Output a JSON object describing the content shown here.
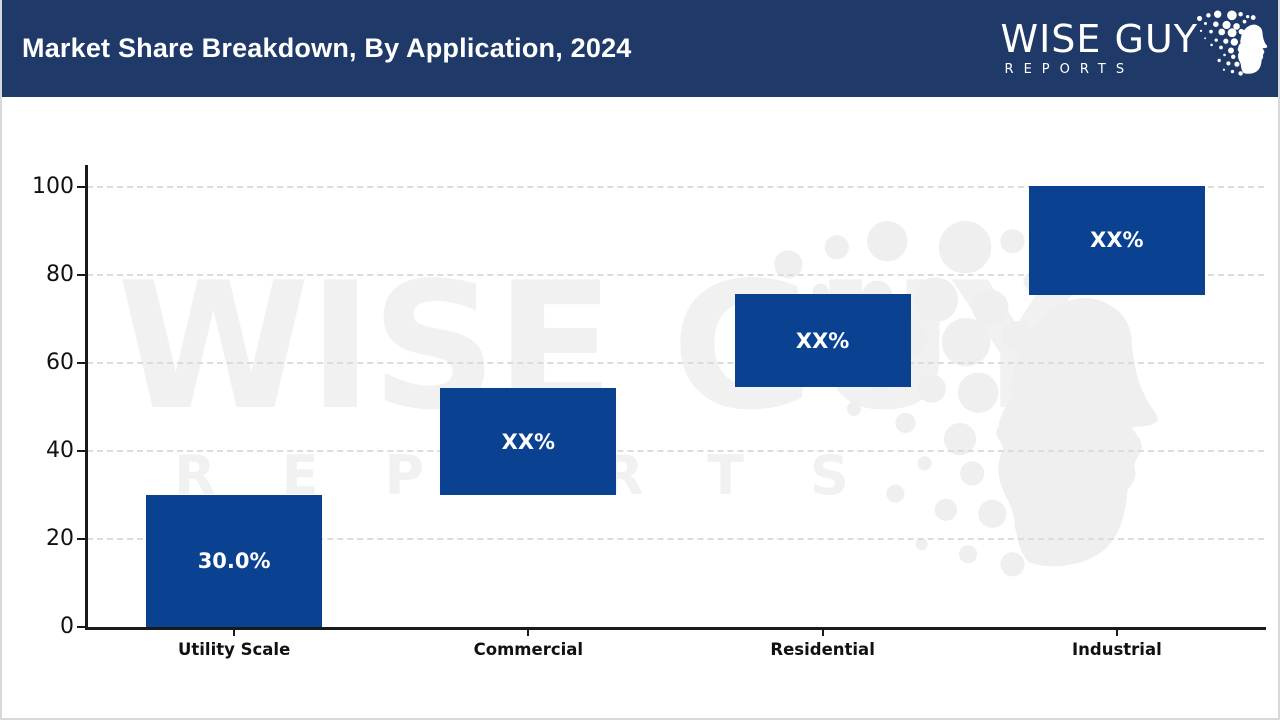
{
  "header": {
    "title": "Market Share Breakdown, By Application, 2024",
    "logo": {
      "line1": "WISE GUY",
      "line2": "REPORTS"
    }
  },
  "watermark": {
    "line1": "WISE GUY",
    "line2": "REPORTS"
  },
  "chart_data": {
    "type": "bar",
    "subtype": "waterfall",
    "title": "Market Share Breakdown, By Application, 2024",
    "categories": [
      "Utility Scale",
      "Commercial",
      "Residential",
      "Industrial"
    ],
    "segments": [
      {
        "category": "Utility Scale",
        "start": 0,
        "end": 30,
        "label": "30.0%"
      },
      {
        "category": "Commercial",
        "start": 30,
        "end": 54.3,
        "label": "XX%"
      },
      {
        "category": "Residential",
        "start": 54.5,
        "end": 75.7,
        "label": "XX%"
      },
      {
        "category": "Industrial",
        "start": 75.5,
        "end": 100.2,
        "label": "XX%"
      }
    ],
    "yticks": [
      0,
      20,
      40,
      60,
      80,
      100
    ],
    "ylim": [
      0,
      105
    ],
    "xlabel": "",
    "ylabel": "",
    "grid": "horizontal-dashed",
    "legend": "none",
    "bar_color": "#0b4191",
    "bar_label_color": "#ffffff",
    "axis_color": "#1a1a1a",
    "gridline_color": "#dcdcdc",
    "header_color": "#1f3a68"
  }
}
